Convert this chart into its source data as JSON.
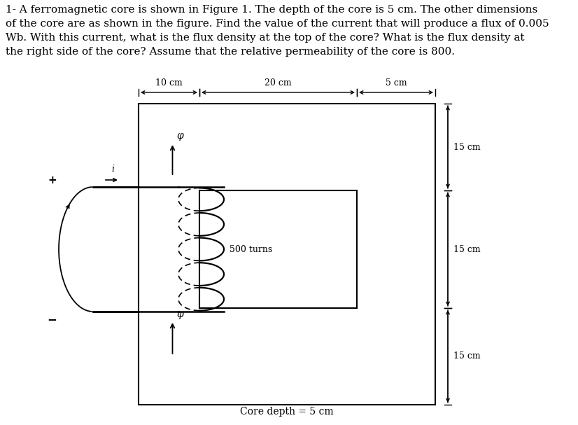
{
  "title_text": "1- A ferromagnetic core is shown in Figure 1. The depth of the core is 5 cm. The other dimensions\nof the core are as shown in the figure. Find the value of the current that will produce a flux of 0.005\nWb. With this current, what is the flux density at the top of the core? What is the flux density at\nthe right side of the core? Assume that the relative permeability of the core is 800.",
  "caption": "Core depth = 5 cm",
  "label_10cm": "10 cm",
  "label_20cm": "20 cm",
  "label_5cm": "5 cm",
  "label_15cm_top": "15 cm",
  "label_15cm_mid": "15 cm",
  "label_15cm_bot": "15 cm",
  "label_turns": "500 turns",
  "label_phi": "φ",
  "label_i": "i",
  "bg_color": "#ffffff",
  "line_color": "#000000",
  "font_size_title": 11,
  "font_size_label": 9
}
